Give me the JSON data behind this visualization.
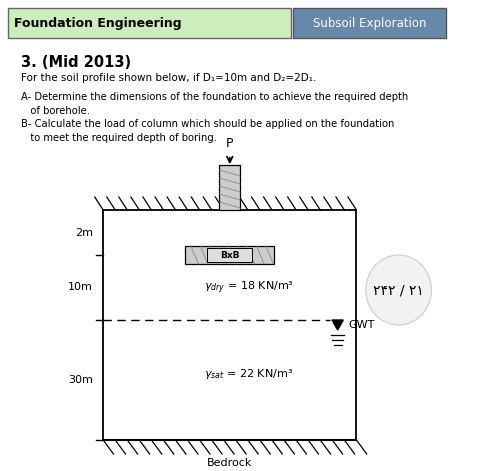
{
  "header_left": "Foundation Engineering",
  "header_right": "Subsoil Exploration",
  "header_left_bg": "#cceebb",
  "header_right_bg": "#6688aa",
  "header_right_fg": "#ffffff",
  "title": "3. (Mid 2013)",
  "subtitle": "For the soil profile shown below, if D₁=10m and D₂=2D₁.",
  "point_a": "A- Determine the dimensions of the foundation to achieve the required depth",
  "point_a2": "   of borehole.",
  "point_b": "B- Calculate the load of column which should be applied on the foundation",
  "point_b2": "   to meet the required depth of boring.",
  "label_2m": "2m",
  "label_10m": "10m",
  "label_30m": "30m",
  "label_gwt": "GWT",
  "label_P": "P",
  "label_BxB": "BxB",
  "label_bedrock": "Bedrock",
  "arabic_text": "٢۴٢ / ٢١",
  "bg_color": "#ffffff"
}
